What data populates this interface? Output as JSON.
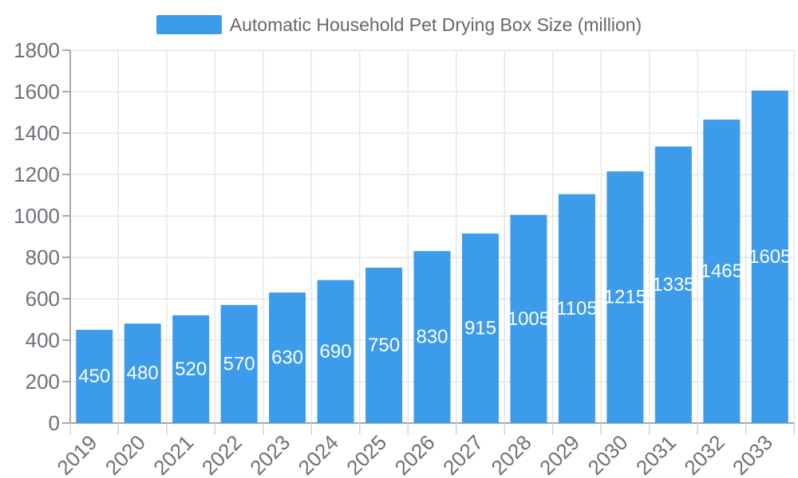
{
  "legend": {
    "label": "Automatic Household Pet Drying Box Size (million)"
  },
  "chart_data": {
    "type": "bar",
    "title": "Automatic Household Pet Drying Box Size (million)",
    "categories": [
      "2019",
      "2020",
      "2021",
      "2022",
      "2023",
      "2024",
      "2025",
      "2026",
      "2027",
      "2028",
      "2029",
      "2030",
      "2031",
      "2032",
      "2033"
    ],
    "values": [
      450,
      480,
      520,
      570,
      630,
      690,
      750,
      830,
      915,
      1005,
      1105,
      1215,
      1335,
      1465,
      1605
    ],
    "xlabel": "",
    "ylabel": "",
    "ylim": [
      0,
      1800
    ],
    "ytick_step": 200,
    "yticks": [
      0,
      200,
      400,
      600,
      800,
      1000,
      1200,
      1400,
      1600,
      1800
    ],
    "grid": true,
    "bar_labels_shown": true,
    "legend_position": "top-center",
    "x_label_rotation_deg": 45,
    "colors": {
      "bar": "#3D9BEB",
      "bar_label": "#FFFFFF",
      "axis_line": "#A6A6A6",
      "grid_line": "#E7E7E7",
      "tick_line": "#D4D4D4",
      "axis_text": "#6E7079",
      "legend_text": "#676767",
      "background": "#FFFFFF"
    }
  }
}
